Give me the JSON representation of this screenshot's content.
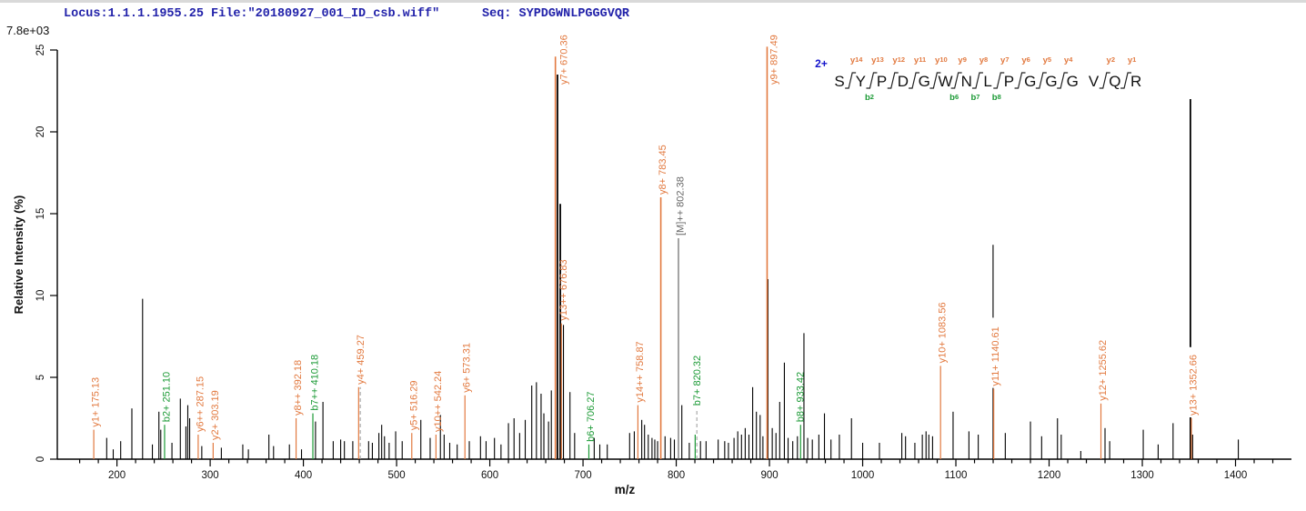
{
  "header": {
    "locus_file": "Locus:1.1.1.1955.25 File:\"20180927_001_ID_csb.wiff\"",
    "seq": "Seq: SYPDGWNLPGGGVQR",
    "scale_note": "7.8e+03"
  },
  "colors": {
    "y_ion": "#E2793F",
    "b_ion": "#1B9A35",
    "precursor": "#666666",
    "peak": "#000000",
    "header_text": "#2222AA",
    "charge": "#1414CC",
    "axis": "#000000",
    "dashed_leader": "#9a9a9a"
  },
  "peptide": {
    "charge_label": "2+",
    "sequence": "SYPDGWNLPGGGVQR",
    "boundaries": [
      {
        "after": 1,
        "y": "y14"
      },
      {
        "after": 2,
        "y": "y13",
        "b": "b2"
      },
      {
        "after": 3,
        "y": "y12"
      },
      {
        "after": 4,
        "y": "y11"
      },
      {
        "after": 5,
        "y": "y10"
      },
      {
        "after": 6,
        "y": "y9",
        "b": "b6"
      },
      {
        "after": 7,
        "y": "y8",
        "b": "b7"
      },
      {
        "after": 8,
        "y": "y7",
        "b": "b8"
      },
      {
        "after": 9,
        "y": "y6"
      },
      {
        "after": 10,
        "y": "y5"
      },
      {
        "after": 11,
        "y": "y4"
      },
      {
        "after": 13,
        "y": "y2"
      },
      {
        "after": 14,
        "y": "y1"
      }
    ]
  },
  "chart_data": {
    "type": "bar",
    "subtype": "ms2-stick-spectrum",
    "title": "",
    "xlabel": "m/z",
    "ylabel": "Relative  Intensity (%)",
    "xlim": [
      136,
      1460
    ],
    "ylim": [
      0,
      25
    ],
    "x_ticks_major": [
      200,
      300,
      400,
      500,
      600,
      700,
      800,
      900,
      1000,
      1100,
      1200,
      1300,
      1400
    ],
    "x_minor_step": 20,
    "y_ticks": [
      0,
      5,
      10,
      15,
      20,
      25
    ],
    "grid": false,
    "annotated_peaks": [
      {
        "label": "y1+ 175.13",
        "ion": "y",
        "mz": 175.13,
        "intensity_pct": 1.8
      },
      {
        "label": "b2+ 251.10",
        "ion": "b",
        "mz": 251.1,
        "intensity_pct": 2.1
      },
      {
        "label": "y6++ 287.15",
        "ion": "y",
        "mz": 287.15,
        "intensity_pct": 1.5
      },
      {
        "label": "y2+ 303.19",
        "ion": "y",
        "mz": 303.19,
        "intensity_pct": 1.0
      },
      {
        "label": "y8++ 392.18",
        "ion": "y",
        "mz": 392.18,
        "intensity_pct": 2.5
      },
      {
        "label": "b7++ 410.18",
        "ion": "b",
        "mz": 410.18,
        "intensity_pct": 2.8
      },
      {
        "label": "y4+ 459.27",
        "ion": "y",
        "mz": 459.27,
        "intensity_pct": 4.4,
        "dashed": true
      },
      {
        "label": "y5+ 516.29",
        "ion": "y",
        "mz": 516.29,
        "intensity_pct": 1.6
      },
      {
        "label": "y10++ 542.24",
        "ion": "y",
        "mz": 542.24,
        "intensity_pct": 1.5
      },
      {
        "label": "y6+ 573.31",
        "ion": "y",
        "mz": 573.31,
        "intensity_pct": 3.9
      },
      {
        "label": "y7+ 670.36",
        "ion": "y",
        "mz": 670.36,
        "intensity_pct": 24.6,
        "label_dx": 13
      },
      {
        "label": "y13++ 676.83",
        "ion": "y",
        "mz": 676.83,
        "intensity_pct": 8.3
      },
      {
        "label": "b6+ 706.27",
        "ion": "b",
        "mz": 706.27,
        "intensity_pct": 0.9
      },
      {
        "label": "y14++ 758.87",
        "ion": "y",
        "mz": 758.87,
        "intensity_pct": 3.3
      },
      {
        "label": "y8+ 783.45",
        "ion": "y",
        "mz": 783.45,
        "intensity_pct": 16.0
      },
      {
        "label": "[M]++ 802.38",
        "ion": "M",
        "mz": 802.38,
        "intensity_pct": 13.5
      },
      {
        "label": "b7+ 820.32",
        "ion": "b",
        "mz": 820.32,
        "intensity_pct": 1.5,
        "dashed": true,
        "label_anchor_pct": 3.1
      },
      {
        "label": "y9+ 897.49",
        "ion": "y",
        "mz": 897.49,
        "intensity_pct": 25.2,
        "label_dx": 11
      },
      {
        "label": "b8+ 933.42",
        "ion": "b",
        "mz": 933.42,
        "intensity_pct": 2.1,
        "label_dx": 3
      },
      {
        "label": "y10+ 1083.56",
        "ion": "y",
        "mz": 1083.56,
        "intensity_pct": 5.7
      },
      {
        "label": "y11+ 1140.61",
        "ion": "y",
        "mz": 1140.61,
        "intensity_pct": 4.3,
        "embedded": true
      },
      {
        "label": "y12+ 1255.62",
        "ion": "y",
        "mz": 1255.62,
        "intensity_pct": 3.4
      },
      {
        "label": "y13+ 1352.66",
        "ion": "y",
        "mz": 1352.66,
        "intensity_pct": 2.5,
        "embedded": true
      }
    ],
    "unlabeled_peaks": [
      [
        189,
        1.3
      ],
      [
        196,
        0.6
      ],
      [
        204,
        1.1
      ],
      [
        216,
        3.1
      ],
      [
        227.5,
        9.8
      ],
      [
        238,
        0.9
      ],
      [
        245,
        2.9
      ],
      [
        247,
        1.8
      ],
      [
        259,
        1.0
      ],
      [
        268,
        3.7
      ],
      [
        274,
        2.0
      ],
      [
        276,
        3.3
      ],
      [
        278,
        2.5
      ],
      [
        291,
        0.8
      ],
      [
        312,
        0.7
      ],
      [
        335,
        0.9
      ],
      [
        341,
        0.6
      ],
      [
        363,
        1.5
      ],
      [
        368,
        0.8
      ],
      [
        385,
        0.9
      ],
      [
        398,
        0.6
      ],
      [
        413,
        2.3
      ],
      [
        421,
        3.5
      ],
      [
        432,
        1.1
      ],
      [
        440,
        1.2
      ],
      [
        444,
        1.1
      ],
      [
        453,
        1.1
      ],
      [
        470,
        1.1
      ],
      [
        474,
        1.0
      ],
      [
        481,
        1.6
      ],
      [
        484,
        2.1
      ],
      [
        487,
        1.4
      ],
      [
        492,
        1.0
      ],
      [
        499,
        1.7
      ],
      [
        506,
        1.1
      ],
      [
        526,
        2.4
      ],
      [
        536,
        1.3
      ],
      [
        547,
        2.7
      ],
      [
        551,
        1.5
      ],
      [
        557,
        1.0
      ],
      [
        565,
        0.9
      ],
      [
        578,
        1.1
      ],
      [
        590,
        1.4
      ],
      [
        596,
        1.1
      ],
      [
        605,
        1.3
      ],
      [
        612,
        0.9
      ],
      [
        620,
        2.2
      ],
      [
        626,
        2.5
      ],
      [
        632,
        1.6
      ],
      [
        638,
        2.4
      ],
      [
        645,
        4.5
      ],
      [
        650,
        4.7
      ],
      [
        655,
        4.0
      ],
      [
        658,
        2.8
      ],
      [
        663,
        2.3
      ],
      [
        666,
        4.2
      ],
      [
        672.6,
        23.5
      ],
      [
        675.6,
        15.6
      ],
      [
        679,
        8.2
      ],
      [
        686,
        4.1
      ],
      [
        691,
        1.6
      ],
      [
        712,
        1.3
      ],
      [
        718,
        0.9
      ],
      [
        726,
        0.9
      ],
      [
        750,
        1.6
      ],
      [
        755,
        1.7
      ],
      [
        763,
        2.4
      ],
      [
        766,
        2.1
      ],
      [
        770,
        1.5
      ],
      [
        774,
        1.3
      ],
      [
        777,
        1.2
      ],
      [
        780,
        1.1
      ],
      [
        788,
        1.4
      ],
      [
        794,
        1.3
      ],
      [
        798,
        1.2
      ],
      [
        806,
        3.3
      ],
      [
        814,
        1.0
      ],
      [
        826,
        1.1
      ],
      [
        832,
        1.1
      ],
      [
        845,
        1.2
      ],
      [
        852,
        1.1
      ],
      [
        856,
        1.0
      ],
      [
        862,
        1.3
      ],
      [
        866,
        1.7
      ],
      [
        870,
        1.5
      ],
      [
        874,
        1.9
      ],
      [
        878,
        1.5
      ],
      [
        882,
        4.4
      ],
      [
        886,
        2.9
      ],
      [
        890,
        2.7
      ],
      [
        893,
        1.4
      ],
      [
        898.4,
        11.0
      ],
      [
        903,
        1.9
      ],
      [
        907,
        1.6
      ],
      [
        911,
        3.5
      ],
      [
        916,
        5.9
      ],
      [
        920,
        1.3
      ],
      [
        925,
        1.1
      ],
      [
        930,
        1.4
      ],
      [
        937,
        7.7
      ],
      [
        941,
        1.3
      ],
      [
        946,
        1.2
      ],
      [
        953,
        1.5
      ],
      [
        959,
        2.8
      ],
      [
        966,
        1.2
      ],
      [
        975,
        1.5
      ],
      [
        988,
        2.5
      ],
      [
        1000,
        1.0
      ],
      [
        1018,
        1.0
      ],
      [
        1042,
        1.6
      ],
      [
        1046,
        1.4
      ],
      [
        1056,
        1.0
      ],
      [
        1064,
        1.5
      ],
      [
        1068,
        1.7
      ],
      [
        1071,
        1.5
      ],
      [
        1075,
        1.4
      ],
      [
        1097,
        2.9
      ],
      [
        1114,
        1.7
      ],
      [
        1124,
        1.5
      ],
      [
        1139.9,
        13.1
      ],
      [
        1153,
        1.6
      ],
      [
        1180,
        2.3
      ],
      [
        1192,
        1.4
      ],
      [
        1209,
        2.5
      ],
      [
        1213,
        1.5
      ],
      [
        1234,
        0.5
      ],
      [
        1260,
        1.9
      ],
      [
        1265,
        1.1
      ],
      [
        1301,
        1.8
      ],
      [
        1317,
        0.9
      ],
      [
        1333,
        2.2
      ],
      [
        1351.6,
        22.0
      ],
      [
        1354,
        1.5
      ],
      [
        1403,
        1.2
      ]
    ]
  }
}
